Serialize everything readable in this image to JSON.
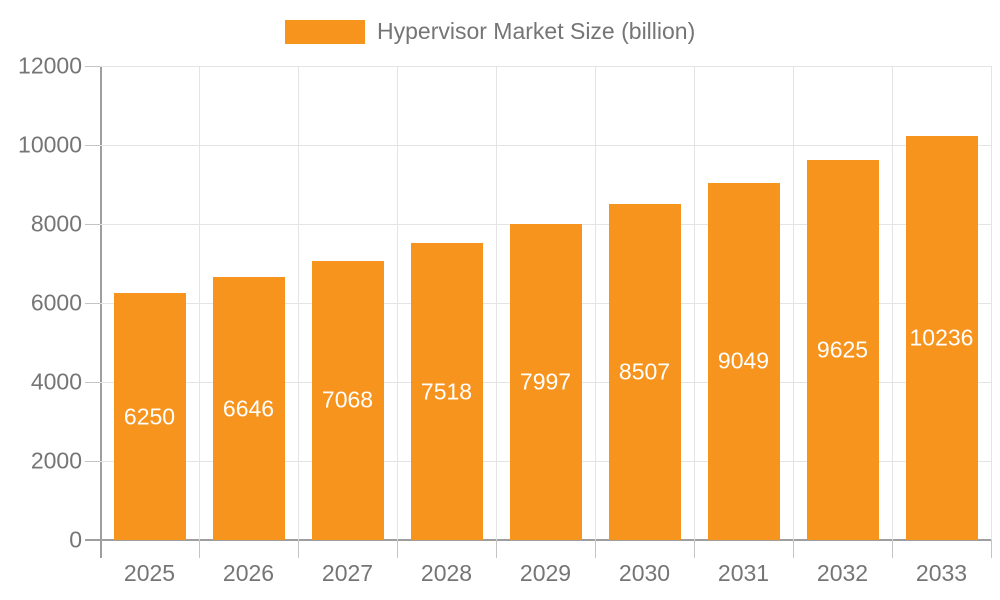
{
  "chart_data": {
    "type": "bar",
    "title": "Hypervisor Market Size (billion)",
    "legend": [
      "Hypervisor Market Size (billion)"
    ],
    "legend_position": "top",
    "categories": [
      "2025",
      "2026",
      "2027",
      "2028",
      "2029",
      "2030",
      "2031",
      "2032",
      "2033"
    ],
    "values": [
      6250,
      6646,
      7068,
      7518,
      7997,
      8507,
      9049,
      9625,
      10236
    ],
    "xlabel": "",
    "ylabel": "",
    "ylim": [
      0,
      12000
    ],
    "yticks": [
      0,
      2000,
      4000,
      6000,
      8000,
      10000,
      12000
    ],
    "grid": true,
    "colors": {
      "bar": "#F7941E",
      "bar_label": "#ffffff",
      "axis_text": "#757575",
      "gridline": "#e4e4e4",
      "axis_line": "#9e9e9e",
      "background": "#ffffff"
    }
  }
}
